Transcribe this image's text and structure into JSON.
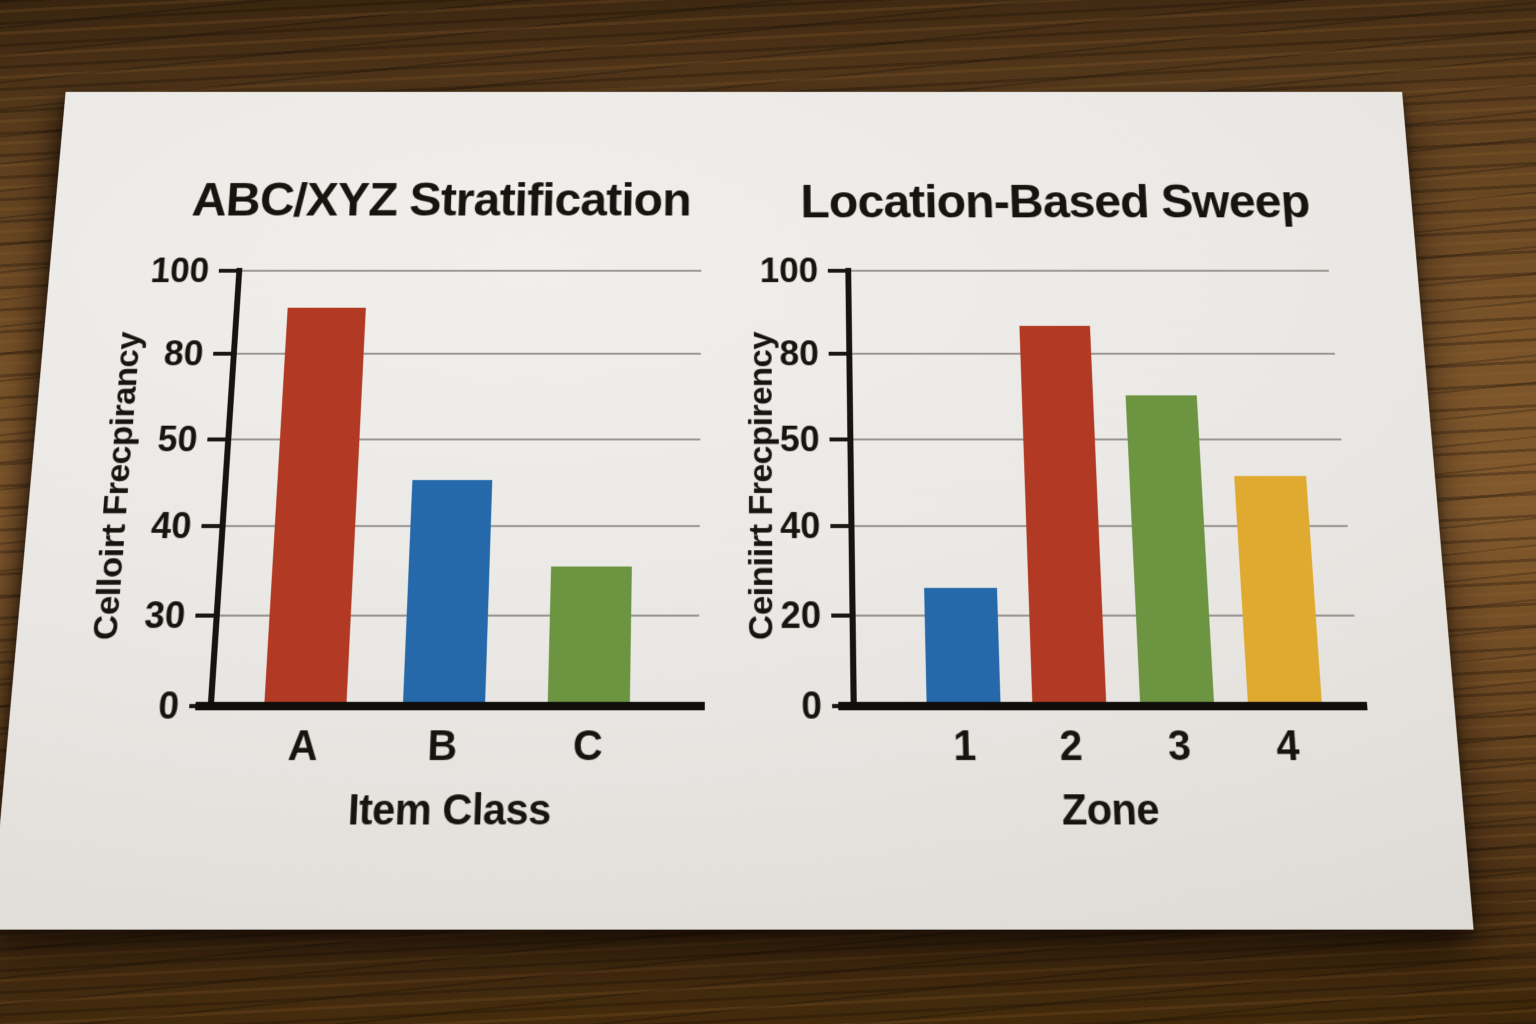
{
  "scene": {
    "description": "Photo of a white card on a wooden table printed with two bar charts",
    "paper_color": "#ebe9e6",
    "wood_color": "#6a4a26",
    "text_color": "#17140f",
    "gridline_color": "#8b8680"
  },
  "chart_data": [
    {
      "type": "bar",
      "title": "ABC/XYZ Stratification",
      "xlabel": "Item Class",
      "ylabel": "Celloirt Frecpirancy",
      "categories": [
        "A",
        "B",
        "C"
      ],
      "values": [
        91,
        45,
        35
      ],
      "bar_colors": [
        "#b23a24",
        "#2569aa",
        "#6d9440"
      ],
      "ytick_labels": [
        "100",
        "80",
        "50",
        "40",
        "30",
        "0"
      ],
      "ytick_positions_pct": [
        100,
        80,
        60,
        40,
        20,
        0
      ],
      "bar_top_pct": [
        91,
        50.5,
        31
      ],
      "grid": true,
      "legend": null,
      "axis_note": "tick labels unevenly valued but evenly spaced, as printed"
    },
    {
      "type": "bar",
      "title": "Location-Based Sweep",
      "xlabel": "Zone",
      "ylabel": "Ceiniirt Frecpirency",
      "categories": [
        "1",
        "2",
        "3",
        "4"
      ],
      "values": [
        26,
        87,
        65,
        46
      ],
      "bar_colors": [
        "#2569aa",
        "#b23a24",
        "#6d9440",
        "#e0a930"
      ],
      "ytick_labels": [
        "100",
        "80",
        "50",
        "40",
        "20",
        "0"
      ],
      "ytick_positions_pct": [
        100,
        80,
        60,
        40,
        20,
        0
      ],
      "bar_top_pct": [
        26.2,
        86.7,
        70.3,
        51.5
      ],
      "grid": true,
      "legend": null,
      "axis_note": "tick labels unevenly valued but evenly spaced, as printed"
    }
  ]
}
